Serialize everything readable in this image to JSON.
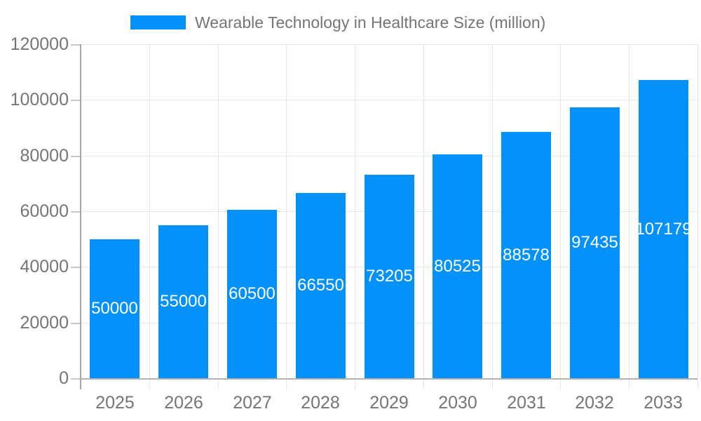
{
  "legend": {
    "label": "Wearable Technology in Healthcare Size (million)"
  },
  "chart_data": {
    "type": "bar",
    "title": "Wearable Technology in Healthcare Size (million)",
    "categories": [
      "2025",
      "2026",
      "2027",
      "2028",
      "2029",
      "2030",
      "2031",
      "2032",
      "2033"
    ],
    "values": [
      50000,
      55000,
      60500,
      66550,
      73205,
      80525,
      88578,
      97435,
      107179
    ],
    "data_labels": [
      "50000",
      "55000",
      "60500",
      "66550",
      "73205",
      "80525",
      "88578",
      "97435",
      "107179"
    ],
    "xlabel": "",
    "ylabel": "",
    "ylim": [
      0,
      120000
    ],
    "yticks": [
      0,
      20000,
      40000,
      60000,
      80000,
      100000,
      120000
    ],
    "ytick_labels": [
      "0",
      "20000",
      "40000",
      "60000",
      "80000",
      "100000",
      "120000"
    ],
    "grid": true,
    "legend_position": "top",
    "colors": {
      "bar": "#0591fa",
      "bar_label": "#ffffff",
      "axis_text": "#757575",
      "grid_line": "#e6e6e6",
      "axis_line": "#b3b3b3",
      "yaxis_line": "#a6a6a6",
      "tick": "#c9c9c9",
      "background": "#ffffff"
    }
  }
}
